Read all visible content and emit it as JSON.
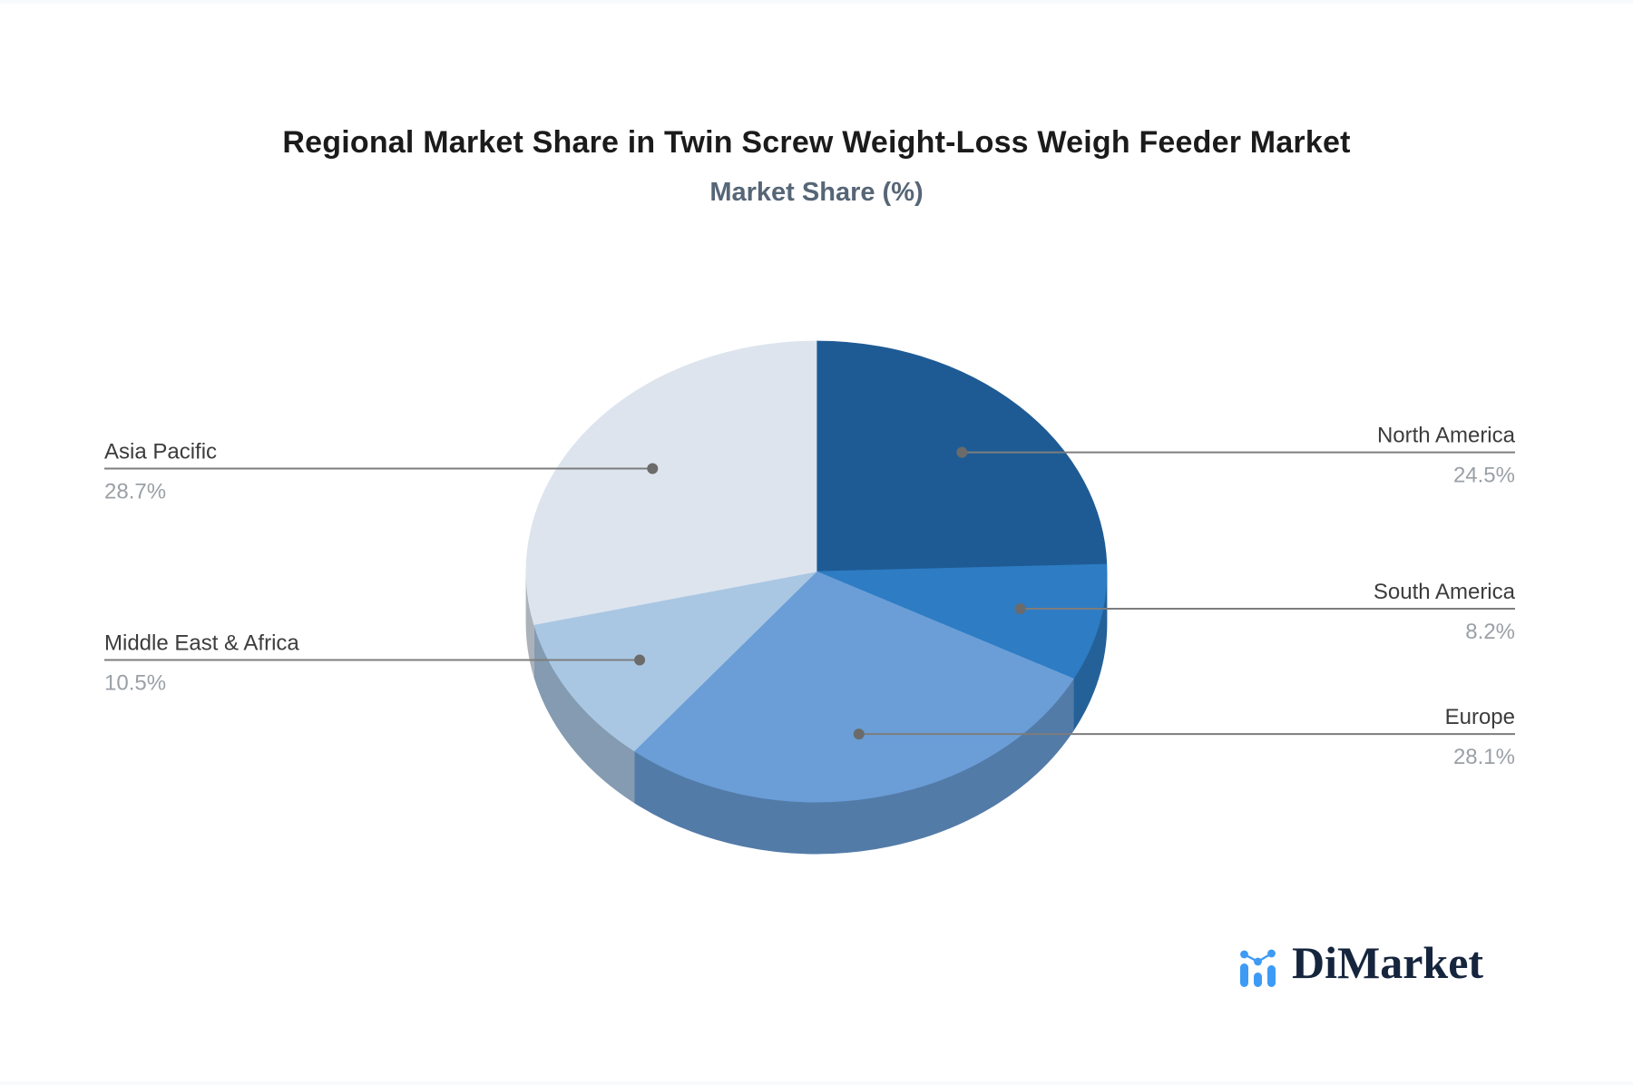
{
  "header": {
    "title": "Regional Market Share in Twin Screw Weight-Loss Weigh Feeder Market",
    "subtitle": "Market Share (%)"
  },
  "chart_data": {
    "type": "pie",
    "style": "3d",
    "title": "Regional Market Share in Twin Screw Weight-Loss Weigh Feeder Market",
    "subtitle": "Market Share (%)",
    "unit": "%",
    "rotation": "clockwise-from-top",
    "legend_position": "callout-labels",
    "slices": [
      {
        "name": "North America",
        "value": 24.5,
        "label": "24.5%",
        "color": "#1e5b95",
        "side": "right"
      },
      {
        "name": "South America",
        "value": 8.2,
        "label": "8.2%",
        "color": "#2e7cc3",
        "side": "right"
      },
      {
        "name": "Europe",
        "value": 28.1,
        "label": "28.1%",
        "color": "#6b9ed7",
        "side": "right"
      },
      {
        "name": "Middle East & Africa",
        "value": 10.5,
        "label": "10.5%",
        "color": "#a9c7e3",
        "side": "left"
      },
      {
        "name": "Asia Pacific",
        "value": 28.7,
        "label": "28.7%",
        "color": "#dde4ee",
        "side": "left"
      }
    ]
  },
  "branding": {
    "logo_text": "DiMarket",
    "logo_icon": "bar-line-chart-icon",
    "icon_color": "#3d9bf5",
    "text_color": "#16253e"
  },
  "style": {
    "label_name_color": "#3c3c3c",
    "label_value_color": "#9ba0a6",
    "leader_line_color": "#7d7d7d",
    "title_color": "#1b1b1b",
    "subtitle_color": "#566676"
  }
}
